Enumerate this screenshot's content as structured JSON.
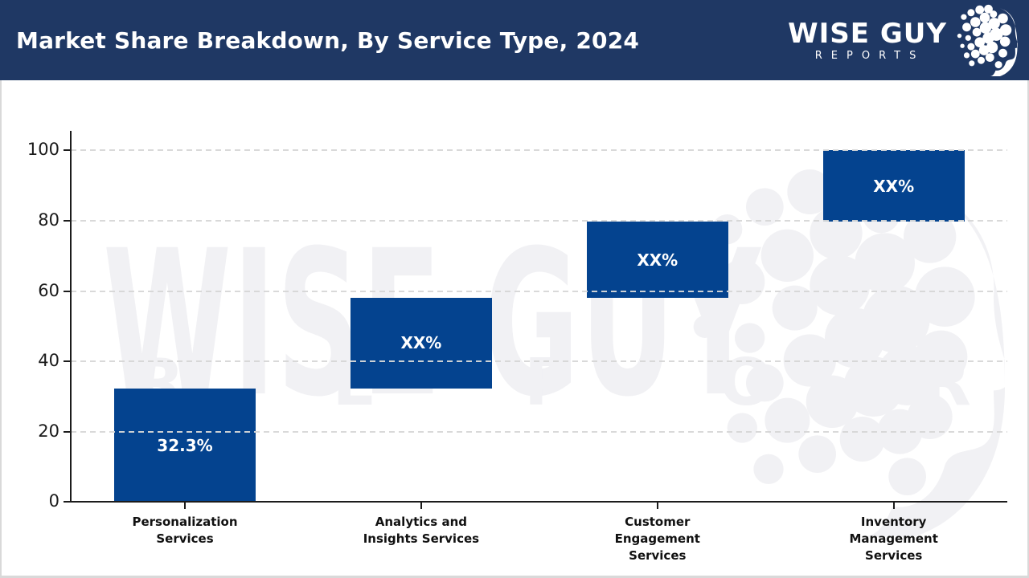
{
  "header": {
    "title": "Market Share Breakdown, By Service Type, 2024",
    "brand_line1": "WISE GUY",
    "brand_line2": "REPORTS",
    "bg_color": "#1f3864"
  },
  "watermark": {
    "line1": "WISE GUY",
    "line2": "R E P O R T S"
  },
  "chart_data": {
    "type": "bar",
    "subtype": "waterfall",
    "title": "Market Share Breakdown, By Service Type, 2024",
    "xlabel": "",
    "ylabel": "",
    "ylim": [
      0,
      100
    ],
    "yticks": [
      0,
      20,
      40,
      60,
      80,
      100
    ],
    "grid": "horizontal-dashed",
    "legend": "none",
    "bar_color": "#04438f",
    "value_label_color": "#ffffff",
    "categories": [
      {
        "lines": [
          "Personalization",
          "Services"
        ]
      },
      {
        "lines": [
          "Analytics and",
          "Insights Services"
        ]
      },
      {
        "lines": [
          "Customer",
          "Engagement",
          "Services"
        ]
      },
      {
        "lines": [
          "Inventory",
          "Management",
          "Services"
        ]
      }
    ],
    "segments": [
      {
        "category": "Personalization Services",
        "start": 0,
        "end": 32.3,
        "label": "32.3%"
      },
      {
        "category": "Analytics and Insights Services",
        "start": 32.3,
        "end": 58.1,
        "label": "XX%"
      },
      {
        "category": "Customer Engagement Services",
        "start": 58.1,
        "end": 79.7,
        "label": "XX%"
      },
      {
        "category": "Inventory Management Services",
        "start": 79.7,
        "end": 100,
        "label": "XX%"
      }
    ]
  }
}
